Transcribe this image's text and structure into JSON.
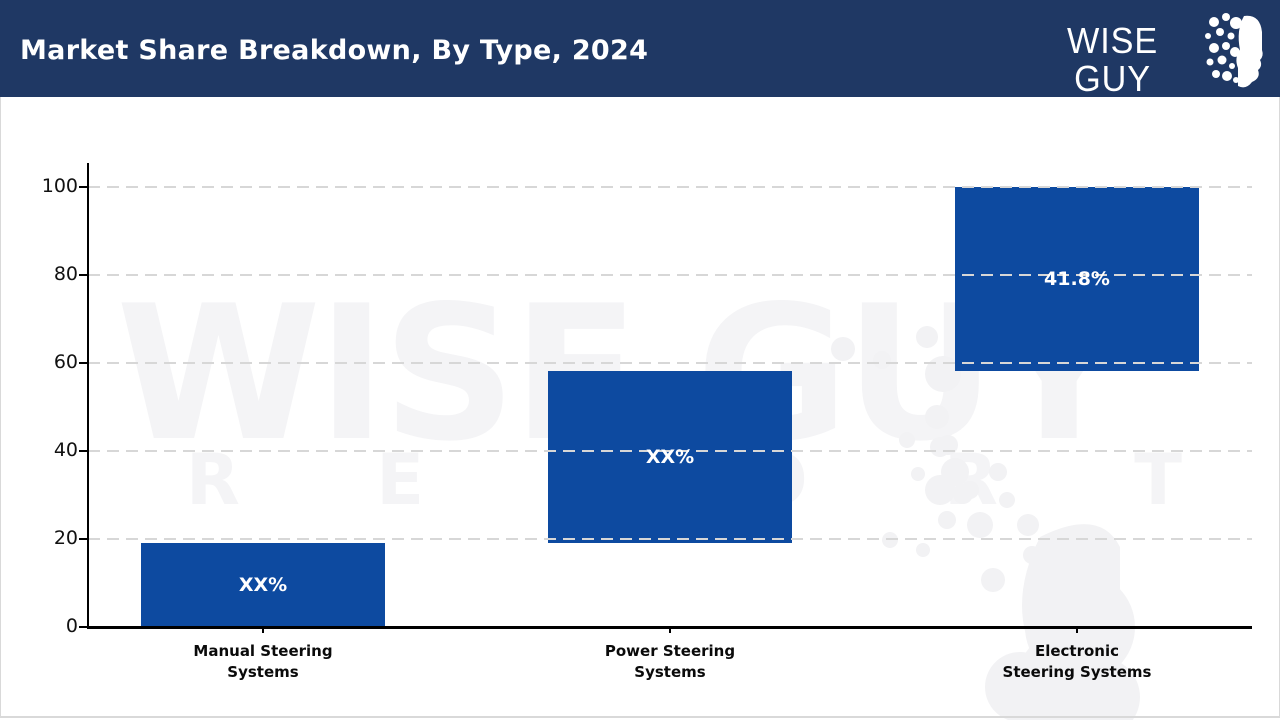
{
  "header": {
    "title": "Market Share Breakdown, By Type, 2024",
    "logo_line1": "WISE GUY",
    "logo_line2": "R E P O R T S",
    "bg_color": "#1F3864"
  },
  "watermark": {
    "line1": "WISE GUY",
    "line2": "R E P O R T S"
  },
  "chart_data": {
    "type": "bar",
    "subtype": "floating-stacked-percentage",
    "title": "Market Share Breakdown, By Type, 2024",
    "categories": [
      "Manual Steering Systems",
      "Power Steering Systems",
      "Electronic Steering Systems"
    ],
    "category_label_lines": [
      [
        "Manual Steering",
        "Systems"
      ],
      [
        "Power Steering",
        "Systems"
      ],
      [
        "Electronic",
        "Steering Systems"
      ]
    ],
    "segments": [
      {
        "category": "Manual Steering Systems",
        "start": 0,
        "end": 19,
        "label": "XX%"
      },
      {
        "category": "Power Steering Systems",
        "start": 19,
        "end": 58.2,
        "label": "XX%"
      },
      {
        "category": "Electronic Steering Systems",
        "start": 58.2,
        "end": 100,
        "label": "41.8%"
      }
    ],
    "yticks": [
      0,
      20,
      40,
      60,
      80,
      100
    ],
    "ylim": [
      0,
      105
    ],
    "xlabel": "",
    "ylabel": "",
    "legend": "none",
    "grid": "horizontal-dashed-over-bars",
    "bar_color": "#0D4AA0",
    "bar_label_color": "#FFFFFF",
    "axis_color": "#000000",
    "gridline_color": "#D7D7D7"
  }
}
